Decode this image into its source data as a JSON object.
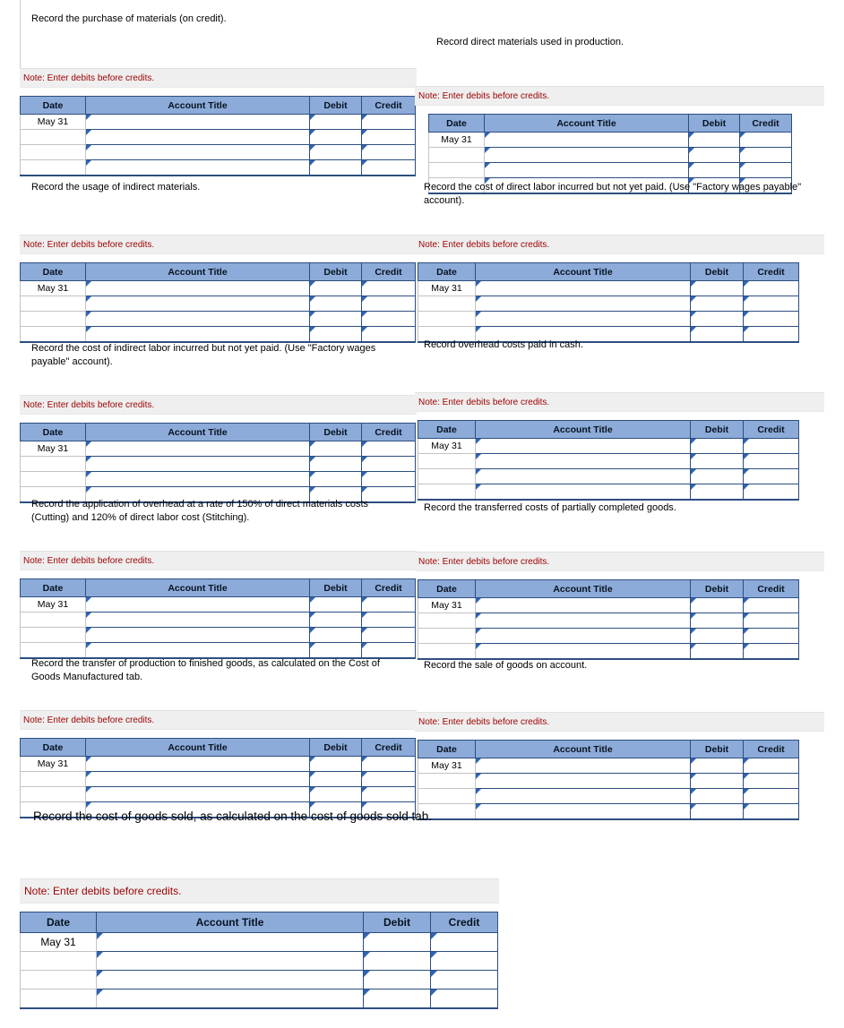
{
  "shared": {
    "note_label": "Note: Enter debits before credits.",
    "headers": {
      "date": "Date",
      "account_title": "Account Title",
      "debit": "Debit",
      "credit": "Credit"
    },
    "entry_date": "May 31"
  },
  "colors": {
    "table_header_bg": "#8dabd9",
    "table_border": "#2d4e80",
    "note_text": "#9c0000",
    "note_bg": "#efefef",
    "cell_flag": "#2f64b5"
  },
  "panels": [
    {
      "id": "purchase-materials",
      "prompt": "Record the purchase of materials (on credit).",
      "rows": [
        "May 31",
        "",
        "",
        ""
      ]
    },
    {
      "id": "direct-materials-used",
      "prompt": "Record direct materials used in production.",
      "rows": [
        "May 31",
        "",
        "",
        ""
      ]
    },
    {
      "id": "indirect-materials-usage",
      "prompt": "Record the usage of indirect materials.",
      "rows": [
        "May 31",
        "",
        "",
        ""
      ]
    },
    {
      "id": "direct-labor-incurred",
      "prompt": "Record the cost of direct labor incurred but not yet paid. (Use \"Factory wages payable\" account).",
      "rows": [
        "May 31",
        "",
        "",
        ""
      ]
    },
    {
      "id": "indirect-labor-incurred",
      "prompt": "Record the cost of indirect labor incurred but not yet paid. (Use \"Factory wages payable\" account).",
      "rows": [
        "May 31",
        "",
        "",
        ""
      ]
    },
    {
      "id": "overhead-paid-cash",
      "prompt": "Record overhead costs paid in cash.",
      "rows": [
        "May 31",
        "",
        "",
        ""
      ]
    },
    {
      "id": "overhead-application",
      "prompt": "Record the application of overhead at a rate of 150% of direct materials costs (Cutting) and 120% of direct labor cost (Stitching).",
      "rows": [
        "May 31",
        "",
        "",
        ""
      ]
    },
    {
      "id": "transfer-partially-completed",
      "prompt": "Record the transferred costs of partially completed goods.",
      "rows": [
        "May 31",
        "",
        "",
        ""
      ]
    },
    {
      "id": "transfer-finished-goods",
      "prompt": "Record the transfer of production to finished goods, as calculated on the Cost of Goods Manufactured tab.",
      "rows": [
        "May 31",
        "",
        "",
        ""
      ]
    },
    {
      "id": "sale-on-account",
      "prompt": "Record the sale of goods on account.",
      "rows": [
        "May 31",
        "",
        "",
        ""
      ]
    },
    {
      "id": "cost-of-goods-sold",
      "prompt": "Record the cost of goods sold, as calculated on the cost of goods sold tab.",
      "rows": [
        "May 31",
        "",
        "",
        ""
      ]
    }
  ]
}
